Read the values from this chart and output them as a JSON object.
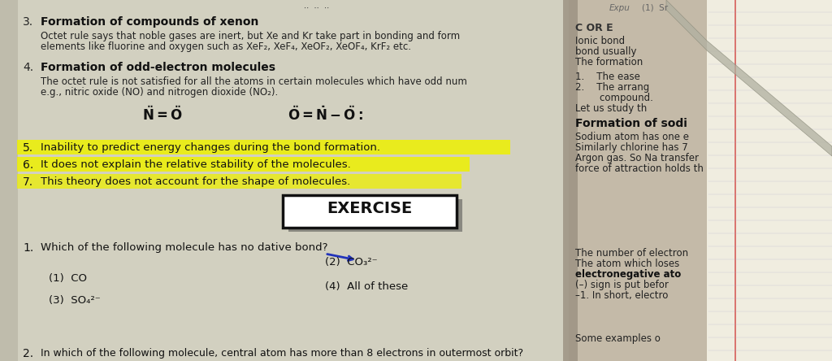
{
  "bg_left": "#d2d0c0",
  "bg_right_page": "#c4baa8",
  "bg_notebook": "#f0ede0",
  "notebook_line_color": "#aaaacc",
  "notebook_red_line": "#cc2222",
  "gutter_color": "#9a9080",
  "title_3": "Formation of compounds of xenon",
  "body_3a": "Octet rule says that noble gases are inert, but Xe and Kr take part in bonding and form",
  "body_3b": "elements like fluorine and oxygen such as XeF₂, XeF₄, XeOF₂, XeOF₄, KrF₂ etc.",
  "title_4": "Formation of odd-electron molecules",
  "body_4a": "The octet rule is not satisfied for all the atoms in certain molecules which have odd num",
  "body_4b": "e.g., nitric oxide (NO) and nitrogen dioxide (NO₂).",
  "item_5": "Inability to predict energy changes during the bond formation.",
  "item_6": "It does not explain the relative stability of the molecules.",
  "item_7": "This theory does not account for the shape of molecules.",
  "exercise_label": "EXERCISE",
  "q1_label": "1.",
  "q1_text": "Which of the following molecule has no dative bond?",
  "q1_opt1": "(1)  CO",
  "q1_opt2": "(2)  CO₃²⁻",
  "q1_opt3": "(3)  SO₄²⁻",
  "q1_opt4": "(4)  All of these",
  "q2_label": "2.",
  "q2_text": "In which of the following molecule, central atom has more than 8 electrons in outermost orbit?",
  "highlight_color": "#eef000",
  "top_dots": "··  ··  ··",
  "expu_label": "Expu",
  "right_num": "(1)  Sr",
  "rc_title": "C OR E",
  "rc_t1": "Ionic bond",
  "rc_t2": "bond usually",
  "rc_t3": "The formation",
  "rc_t4": "1.    The ease",
  "rc_t5": "2.    The arrang",
  "rc_t6": "        compound.",
  "rc_t7": "Let us study th",
  "rc_header": "Formation of sodi",
  "rc_b1": "Sodium atom has one e",
  "rc_b2": "Similarly chlorine has 7",
  "rc_b3": "Argon gas. So Na transfer",
  "rc_b4": "force of attraction holds th",
  "rc_f1": "The number of electron",
  "rc_f2": "The atom which loses",
  "rc_f3": "electronegative ato",
  "rc_f4": "(–) sign is put befor",
  "rc_f5": "–1. In short, electro",
  "rc_f6": "Some examples o"
}
